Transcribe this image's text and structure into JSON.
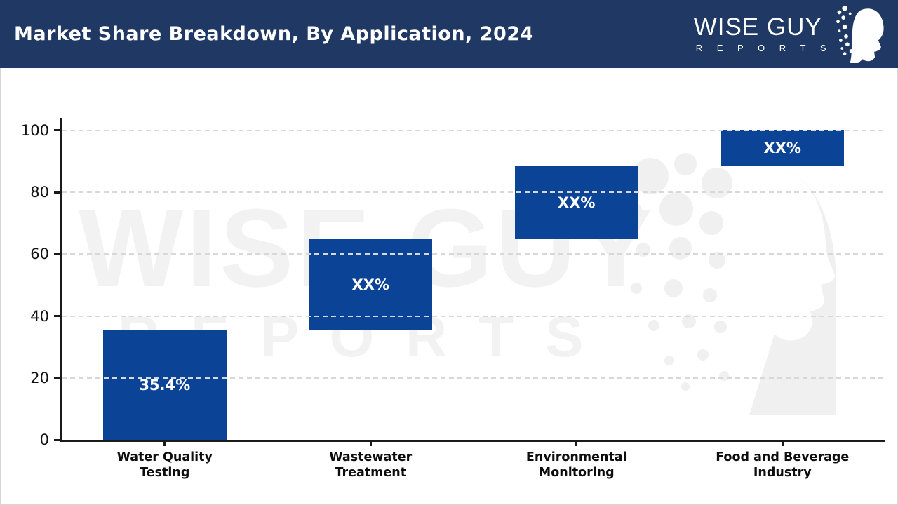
{
  "header": {
    "title": "Market Share Breakdown, By Application, 2024",
    "background": "#1F3864"
  },
  "logo": {
    "wordmark": "WISE GUY",
    "sub": "R E P O R T S"
  },
  "watermark": {
    "wordmark": "WISE GUY",
    "sub": "R E P O R T S"
  },
  "chart_data": {
    "type": "bar",
    "subtype": "waterfall",
    "title": "Market Share Breakdown, By Application, 2024",
    "categories": [
      "Water Quality\nTesting",
      "Wastewater\nTreatment",
      "Environmental\nMonitoring",
      "Food and Beverage\nIndustry"
    ],
    "series": [
      {
        "name": "Water Quality Testing",
        "start": 0,
        "end": 35.4,
        "label": "35.4%"
      },
      {
        "name": "Wastewater Treatment",
        "start": 35.4,
        "end": 64.8,
        "label": "XX%"
      },
      {
        "name": "Environmental Monitoring",
        "start": 64.8,
        "end": 88.4,
        "label": "XX%"
      },
      {
        "name": "Food and Beverage Industry",
        "start": 88.4,
        "end": 100,
        "label": "XX%"
      }
    ],
    "ylim": [
      0,
      104
    ],
    "yticks": [
      0,
      20,
      40,
      60,
      80,
      100
    ],
    "grid": "dashed horizontal, drawn over bars",
    "legend": "none",
    "bar_color": "#0B4396",
    "axis_color": "#1A1A1A",
    "grid_color": "#D8D8D8",
    "bar_label_color": "#FFFFFF"
  }
}
